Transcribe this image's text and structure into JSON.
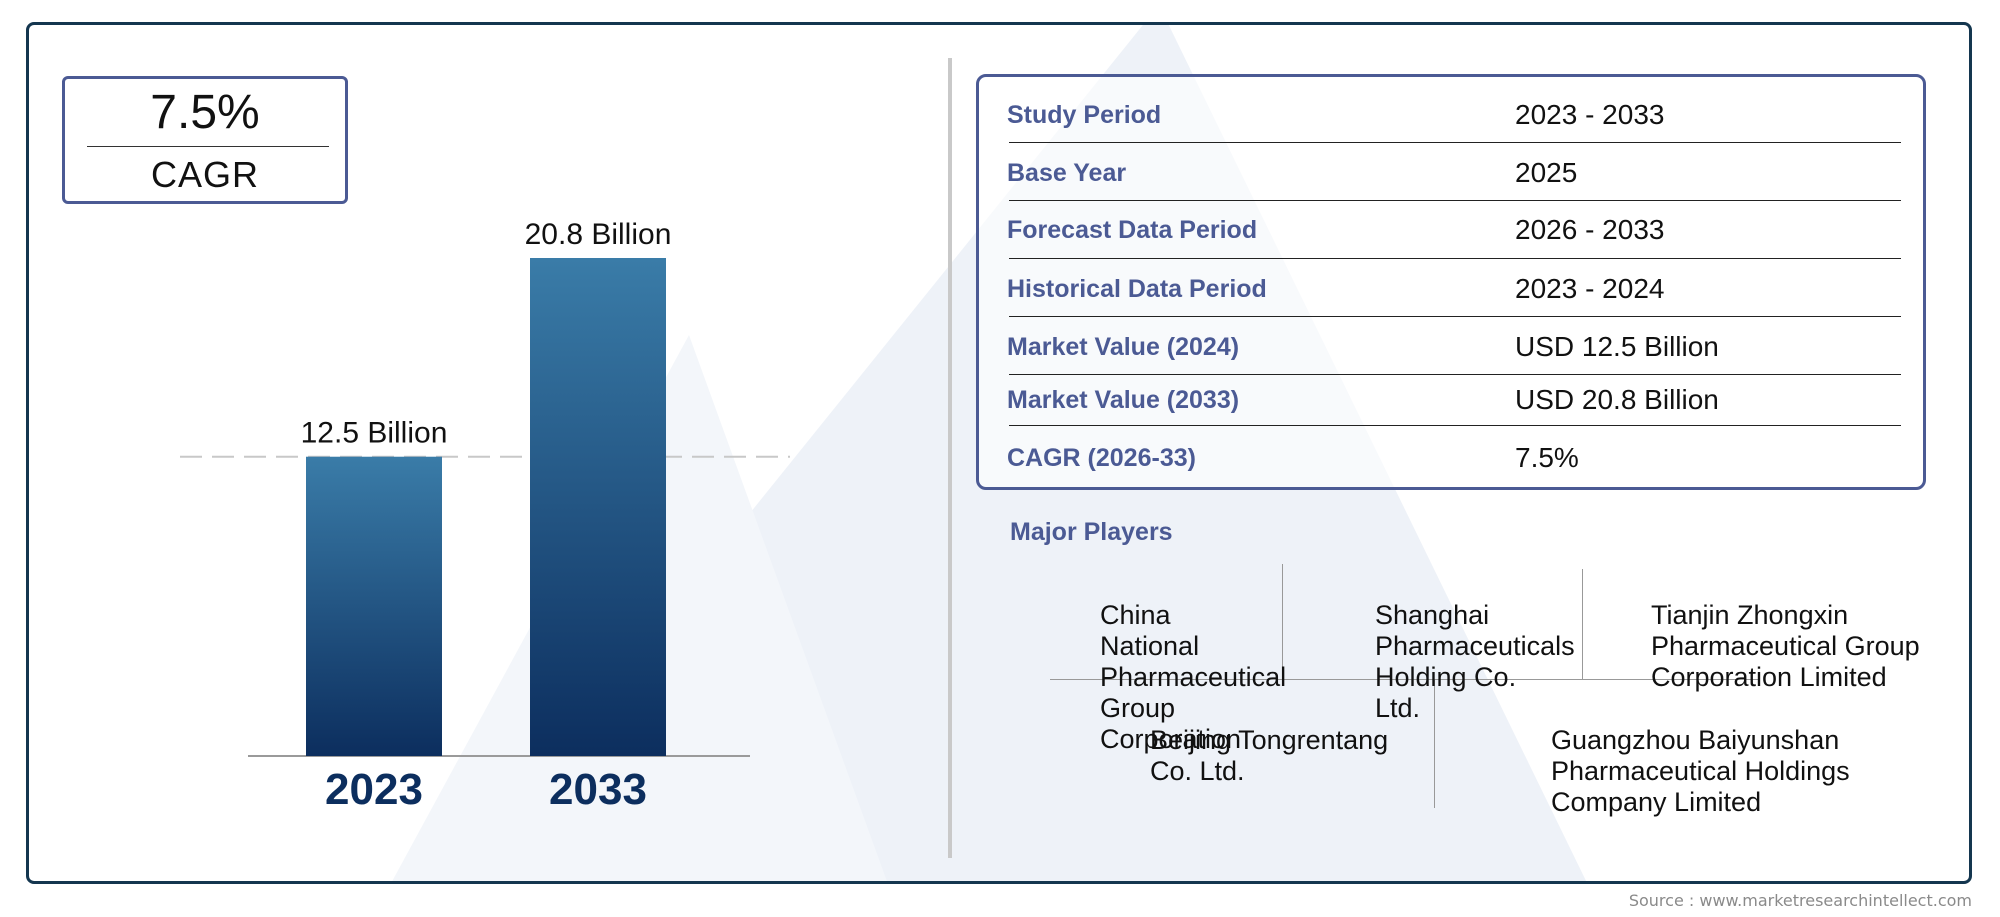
{
  "cagr_badge": {
    "value": "7.5%",
    "label": "CAGR"
  },
  "chart_data": {
    "type": "bar",
    "categories": [
      "2023",
      "2033"
    ],
    "values": [
      12.5,
      20.8
    ],
    "data_labels": [
      "12.5 Billion",
      "20.8 Billion"
    ],
    "reference_line": 12.5,
    "ylim": [
      0,
      22
    ],
    "title": "",
    "xlabel": "",
    "ylabel": "",
    "grid": false,
    "colors": {
      "bar_top": "#3a7ca8",
      "bar_bottom": "#0c2e5e",
      "category_text": "#0c2e5e"
    }
  },
  "table": {
    "rows": [
      {
        "label": "Study Period",
        "value": "2023 - 2033"
      },
      {
        "label": "Base Year",
        "value": "2025"
      },
      {
        "label": "Forecast Data Period",
        "value": "2026 - 2033"
      },
      {
        "label": "Historical Data Period",
        "value": "2023 - 2024"
      },
      {
        "label": "Market Value (2024)",
        "value": "USD 12.5 Billion"
      },
      {
        "label": "Market Value (2033)",
        "value": "USD 20.8 Billion"
      },
      {
        "label": "CAGR (2026-33)",
        "value": "7.5%"
      }
    ]
  },
  "players": {
    "title": "Major Players",
    "names": [
      "China National Pharmaceutical Group Corporation",
      "Shanghai Pharmaceuticals Holding Co. Ltd.",
      "Tianjin Zhongxin Pharmaceutical Group Corporation Limited",
      "Beijing Tongrentang Co. Ltd.",
      "Guangzhou Baiyunshan Pharmaceutical Holdings Company Limited"
    ]
  },
  "source": "Source : www.marketresearchintellect.com",
  "colors": {
    "frame": "#14364f",
    "accent": "#4b5a94",
    "watermark": "#eef2f8"
  }
}
